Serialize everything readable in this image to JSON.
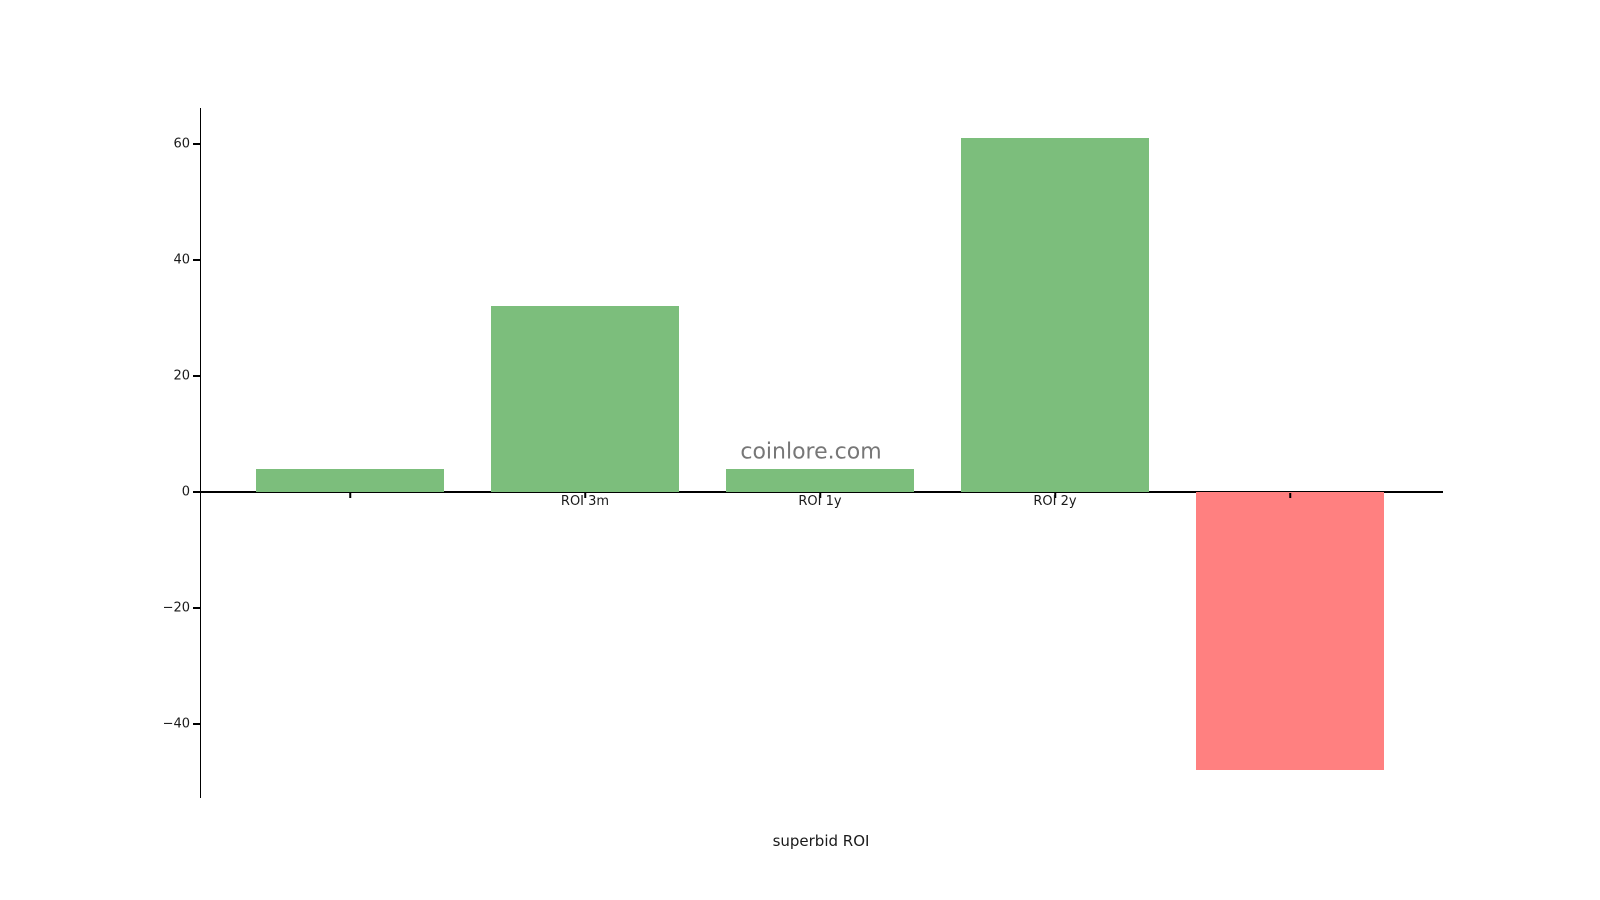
{
  "chart_data": {
    "type": "bar",
    "title": "",
    "xlabel": "superbid ROI",
    "ylabel": "",
    "categories": [
      "",
      "ROI 3m",
      "ROI 1y",
      "ROI 2y",
      ""
    ],
    "values": [
      4,
      32,
      4,
      61,
      -48
    ],
    "yticks": [
      60,
      40,
      20,
      0,
      -20,
      -40
    ],
    "ylim": [
      -53,
      66
    ],
    "grid": false,
    "legend": "none",
    "colors": {
      "positive": "#7cbe7c",
      "negative": "#ff8080",
      "axis": "#000000",
      "tick_text": "#1a1a1a"
    }
  },
  "watermark": {
    "text": "coinlore.com",
    "color": "#777777"
  }
}
